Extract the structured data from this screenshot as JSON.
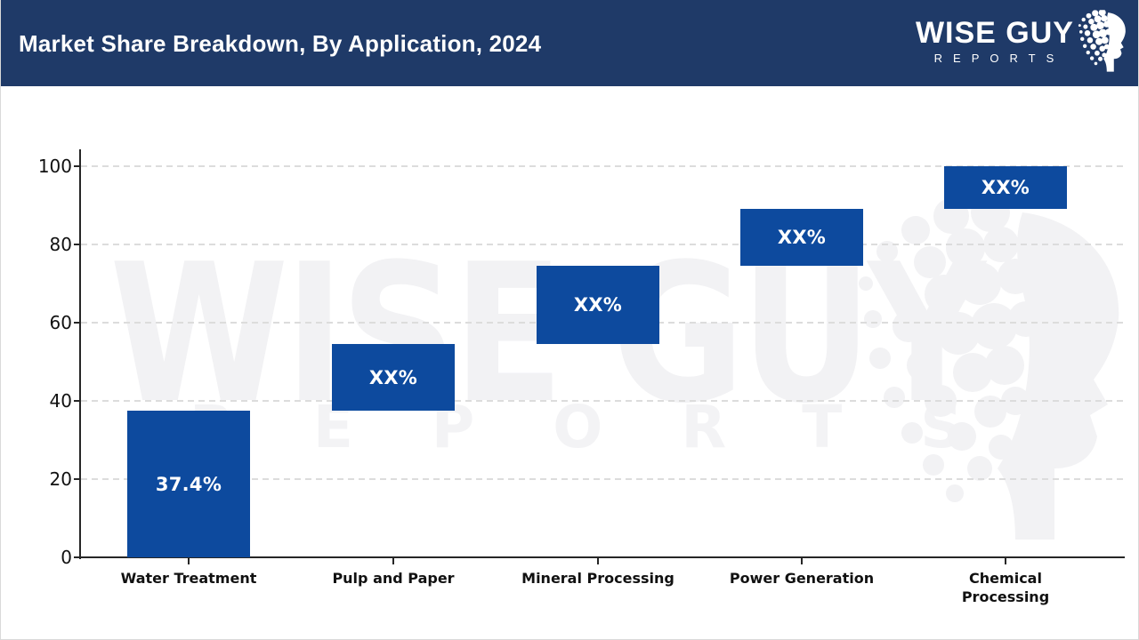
{
  "header": {
    "title": "Market Share Breakdown, By Application, 2024",
    "brand_line1": "WISE GUY",
    "brand_line2": "REPORTS"
  },
  "watermark": {
    "line1": "WISE GUY",
    "line2": "REPORTS"
  },
  "colors": {
    "header_bg": "#1f3a68",
    "bar": "#0d4a9e",
    "grid": "#dcdcdc",
    "axis": "#262626",
    "bar_label_text": "#ffffff",
    "watermark": "#f2f2f4"
  },
  "chart_data": {
    "type": "bar",
    "subtype": "waterfall-style floating bars",
    "title": "Market Share Breakdown, By Application, 2024",
    "categories": [
      "Water Treatment",
      "Pulp and Paper",
      "Mineral Processing",
      "Power Generation",
      "Chemical\nProcessing"
    ],
    "series": [
      {
        "name": "Market share (%)",
        "segments": [
          {
            "from": 0,
            "to": 37.4
          },
          {
            "from": 37.4,
            "to": 54.5
          },
          {
            "from": 54.5,
            "to": 74.5
          },
          {
            "from": 74.5,
            "to": 89
          },
          {
            "from": 89,
            "to": 100
          }
        ]
      }
    ],
    "bar_labels": [
      "37.4%",
      "XX%",
      "XX%",
      "XX%",
      "XX%"
    ],
    "ylim": [
      0,
      105
    ],
    "yticks": [
      0,
      20,
      40,
      60,
      80,
      100
    ],
    "grid": "horizontal-dashed",
    "legend": "none",
    "xlabel": "",
    "ylabel": ""
  }
}
